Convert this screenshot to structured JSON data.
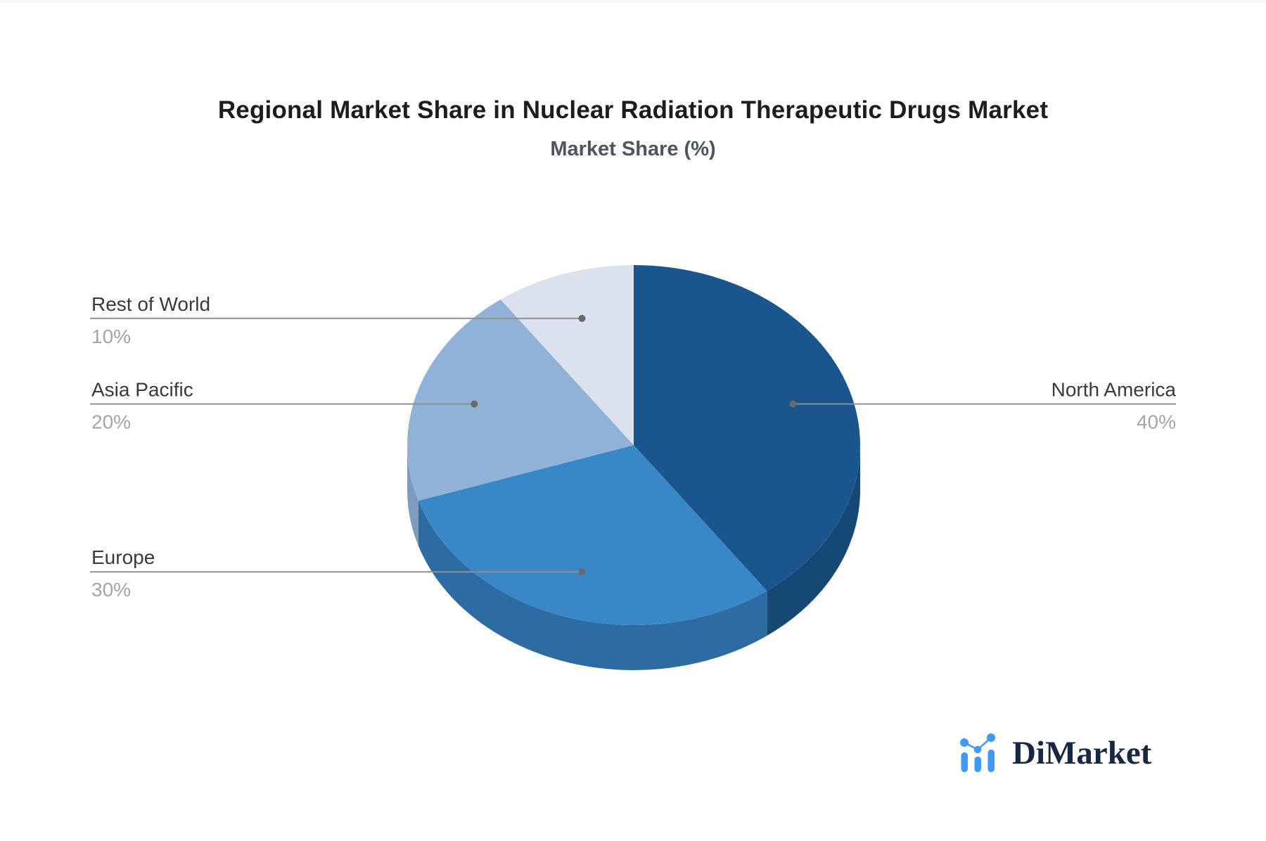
{
  "header": {
    "title": "Regional Market Share in Nuclear Radiation Therapeutic Drugs Market",
    "subtitle": "Market Share (%)"
  },
  "chart_data": {
    "type": "pie",
    "style": "3d-pie",
    "title": "Regional Market Share in Nuclear Radiation Therapeutic Drugs Market",
    "subtitle": "Market Share (%)",
    "unit": "%",
    "start_angle": "12 o'clock, clockwise",
    "legend_position": "leader-line callouts",
    "slices": [
      {
        "label": "North America",
        "value": 40,
        "pct_label": "40%",
        "color": "#1a568d",
        "side_color": "#154874",
        "label_side": "right"
      },
      {
        "label": "Europe",
        "value": 30,
        "pct_label": "30%",
        "color": "#3a87c8",
        "side_color": "#2d6ca3",
        "label_side": "left"
      },
      {
        "label": "Asia Pacific",
        "value": 20,
        "pct_label": "20%",
        "color": "#91b2d7",
        "side_color": "#7d9bc0",
        "label_side": "left"
      },
      {
        "label": "Rest of World",
        "value": 10,
        "pct_label": "10%",
        "color": "#dbe2ee",
        "side_color": "#c6d0e0",
        "label_side": "left"
      }
    ],
    "callout_colors": {
      "line": "#8e8e8e",
      "dot": "#6a6a6a",
      "name_text": "#3a3a3a",
      "pct_text": "#a5a5a5"
    }
  },
  "branding": {
    "name": "DiMarket",
    "icon": "bar-chart-logo-icon",
    "icon_color": "#3f9af7",
    "text_color": "#182743"
  }
}
